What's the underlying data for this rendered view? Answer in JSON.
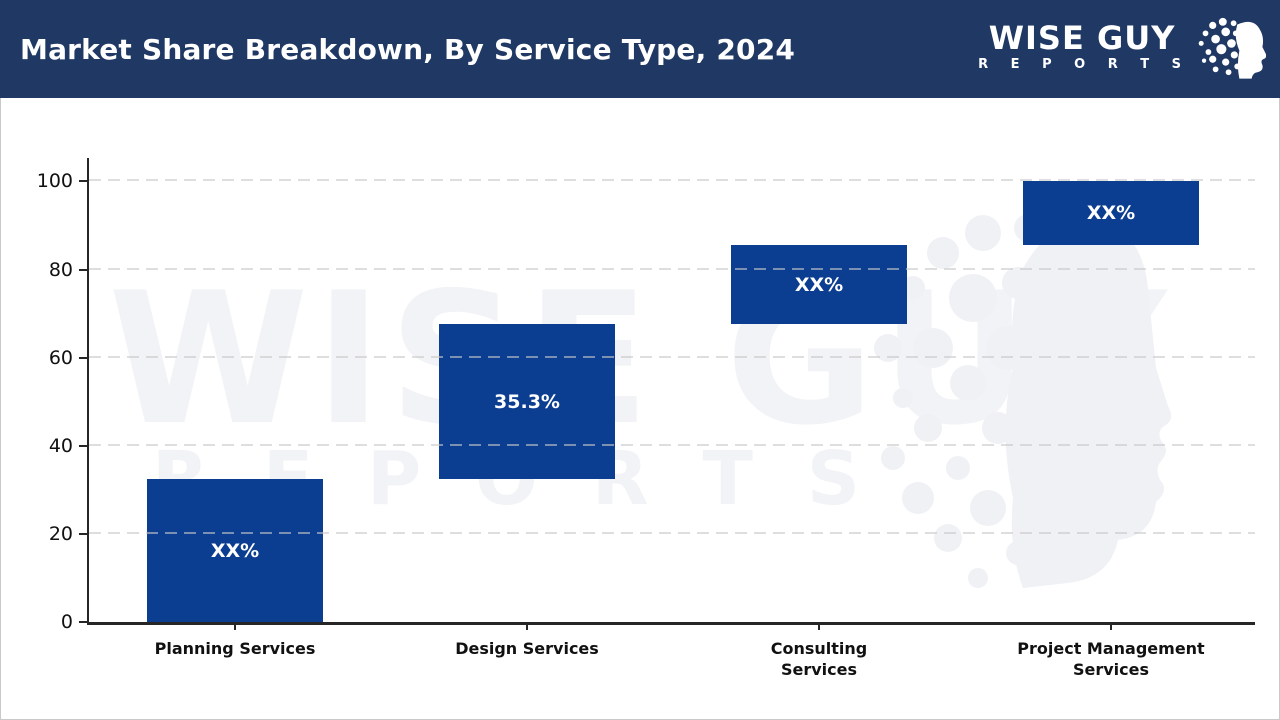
{
  "header": {
    "title": "Market Share Breakdown, By Service Type, 2024",
    "brand": {
      "wordmark": "WISE GUY",
      "reports": "R E P O R T S",
      "icon": "dotted-head-logo"
    }
  },
  "watermark": {
    "wordmark": "WISE GUY",
    "reports": "R E P O R T S",
    "icon": "dotted-head-watermark"
  },
  "colors": {
    "header_bg": "#1F3864",
    "bar": "#0B3D91",
    "bar_label": "#ffffff",
    "grid": "#d9d9d9",
    "axis": "#262626",
    "watermark": "#f2f3f6"
  },
  "chart_data": {
    "type": "bar",
    "variant": "waterfall",
    "title": "Market Share Breakdown, By Service Type, 2024",
    "categories": [
      "Planning Services",
      "Design Services",
      "Consulting Services",
      "Project Management Services"
    ],
    "category_tick_labels": [
      "Planning Services",
      "Design Services",
      "Consulting\nServices",
      "Project Management\nServices"
    ],
    "bars": [
      {
        "category": "Planning Services",
        "start": 0,
        "end": 32.4,
        "label": "XX%"
      },
      {
        "category": "Design Services",
        "start": 32.4,
        "end": 67.7,
        "label": "35.3%"
      },
      {
        "category": "Consulting Services",
        "start": 67.7,
        "end": 85.5,
        "label": "XX%"
      },
      {
        "category": "Project Management Services",
        "start": 85.5,
        "end": 100,
        "label": "XX%"
      }
    ],
    "values": [
      32.4,
      35.3,
      17.8,
      14.5
    ],
    "yticks": [
      0,
      20,
      40,
      60,
      80,
      100
    ],
    "ylim": [
      0,
      106
    ],
    "xlabel": "",
    "ylabel": "",
    "grid": true,
    "legend": false,
    "bar_color": "#0B3D91"
  }
}
